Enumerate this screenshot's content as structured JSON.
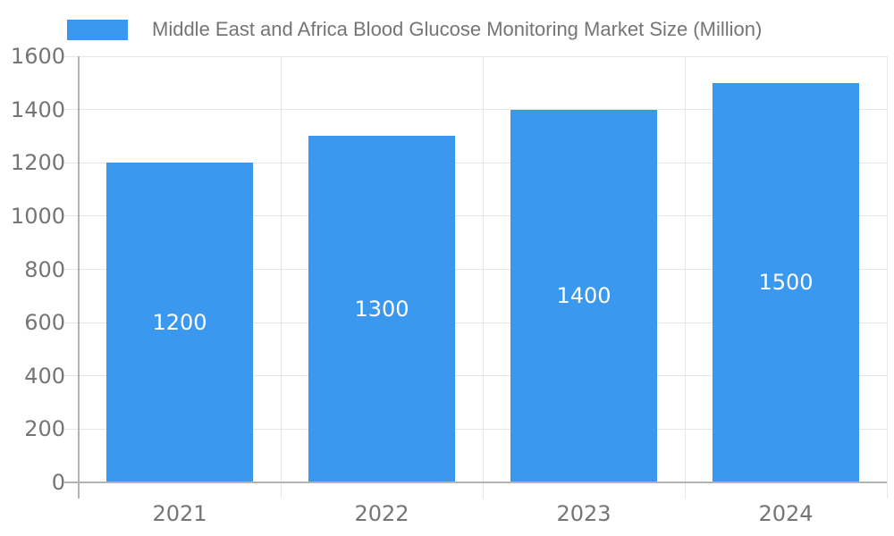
{
  "chart_data": {
    "type": "bar",
    "title": "Middle East and Africa Blood Glucose Monitoring Market Size (Million)",
    "legend": {
      "position": "top",
      "label": "Middle East and Africa Blood Glucose Monitoring Market Size (Million)"
    },
    "categories": [
      "2021",
      "2022",
      "2023",
      "2024"
    ],
    "values": [
      1200,
      1300,
      1400,
      1500
    ],
    "bar_labels": [
      "1200",
      "1300",
      "1400",
      "1500"
    ],
    "xlabel": "",
    "ylabel": "",
    "ylim": [
      0,
      1600
    ],
    "yticks": [
      0,
      200,
      400,
      600,
      800,
      1000,
      1200,
      1400,
      1600
    ],
    "grid": true,
    "colors": {
      "bar": "#3a99ee",
      "text": "#757575",
      "gridline": "#e6e6e6",
      "axis": "#b3b3b3",
      "bar_label": "#ffffff",
      "background": "#ffffff"
    }
  }
}
